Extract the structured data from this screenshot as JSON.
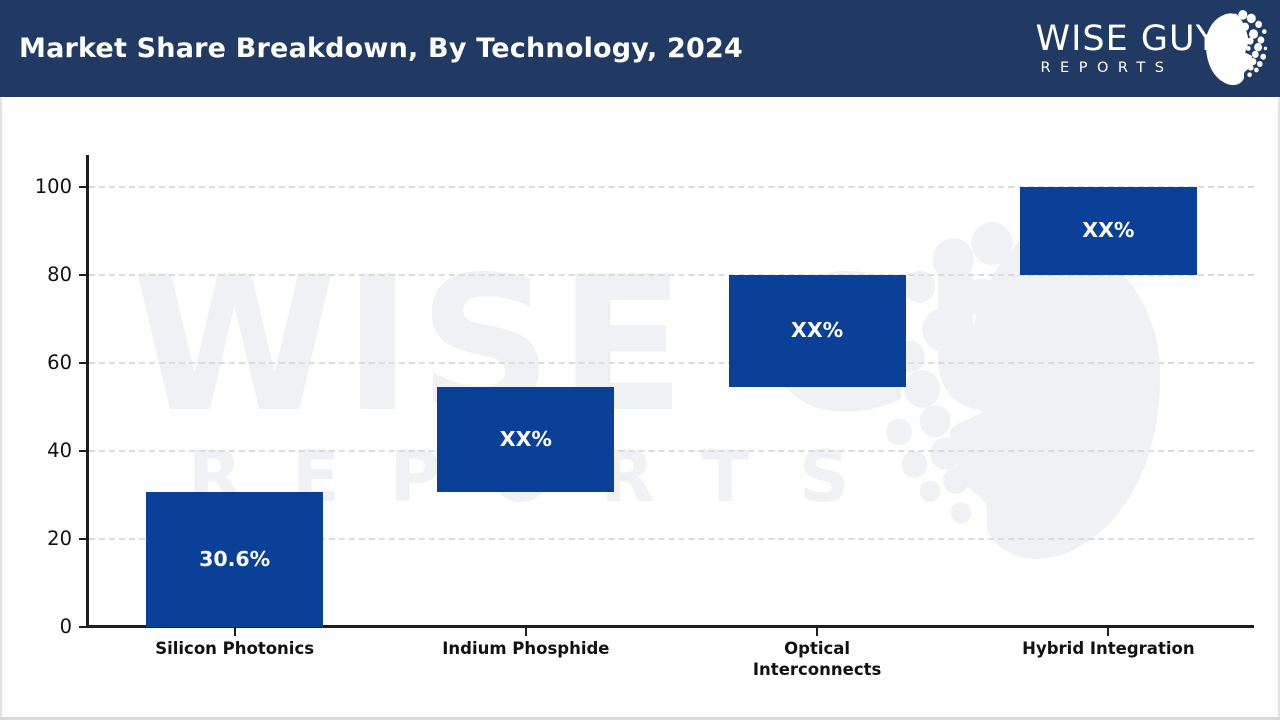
{
  "header": {
    "title": "Market Share Breakdown, By Technology, 2024",
    "logo": {
      "wordmark": "WISE GUY",
      "subtitle": "REPORTS"
    }
  },
  "watermark": {
    "wordmark": "WISE GU",
    "subtitle": "REPORTS"
  },
  "chart_data": {
    "type": "bar",
    "subtype": "waterfall-floating-bars",
    "title": "Market Share Breakdown, By Technology, 2024",
    "categories": [
      "Silicon Photonics",
      "Indium Phosphide",
      "Optical Interconnects",
      "Hybrid Integration"
    ],
    "segments": [
      {
        "category": "Silicon Photonics",
        "start": 0,
        "end": 30.6,
        "label": "30.6%"
      },
      {
        "category": "Indium Phosphide",
        "start": 30.6,
        "end": 54.5,
        "label": "XX%"
      },
      {
        "category": "Optical Interconnects",
        "start": 54.5,
        "end": 80,
        "label": "XX%"
      },
      {
        "category": "Hybrid Integration",
        "start": 80,
        "end": 100,
        "label": "XX%"
      }
    ],
    "ylim": [
      0,
      100
    ],
    "yticks": [
      0,
      20,
      40,
      60,
      80,
      100
    ],
    "xlabel": "",
    "ylabel": "",
    "grid": "horizontal-dashed",
    "legend": "none",
    "bar_color": "#0b4098",
    "bar_label_color": "#ffffff"
  },
  "colors": {
    "header_bg": "#213a63",
    "title_text": "#ffffff",
    "bar": "#0b4098",
    "grid": "#dcdcdc",
    "axis": "#1f1f1f",
    "watermark": "#f0f1f4"
  }
}
